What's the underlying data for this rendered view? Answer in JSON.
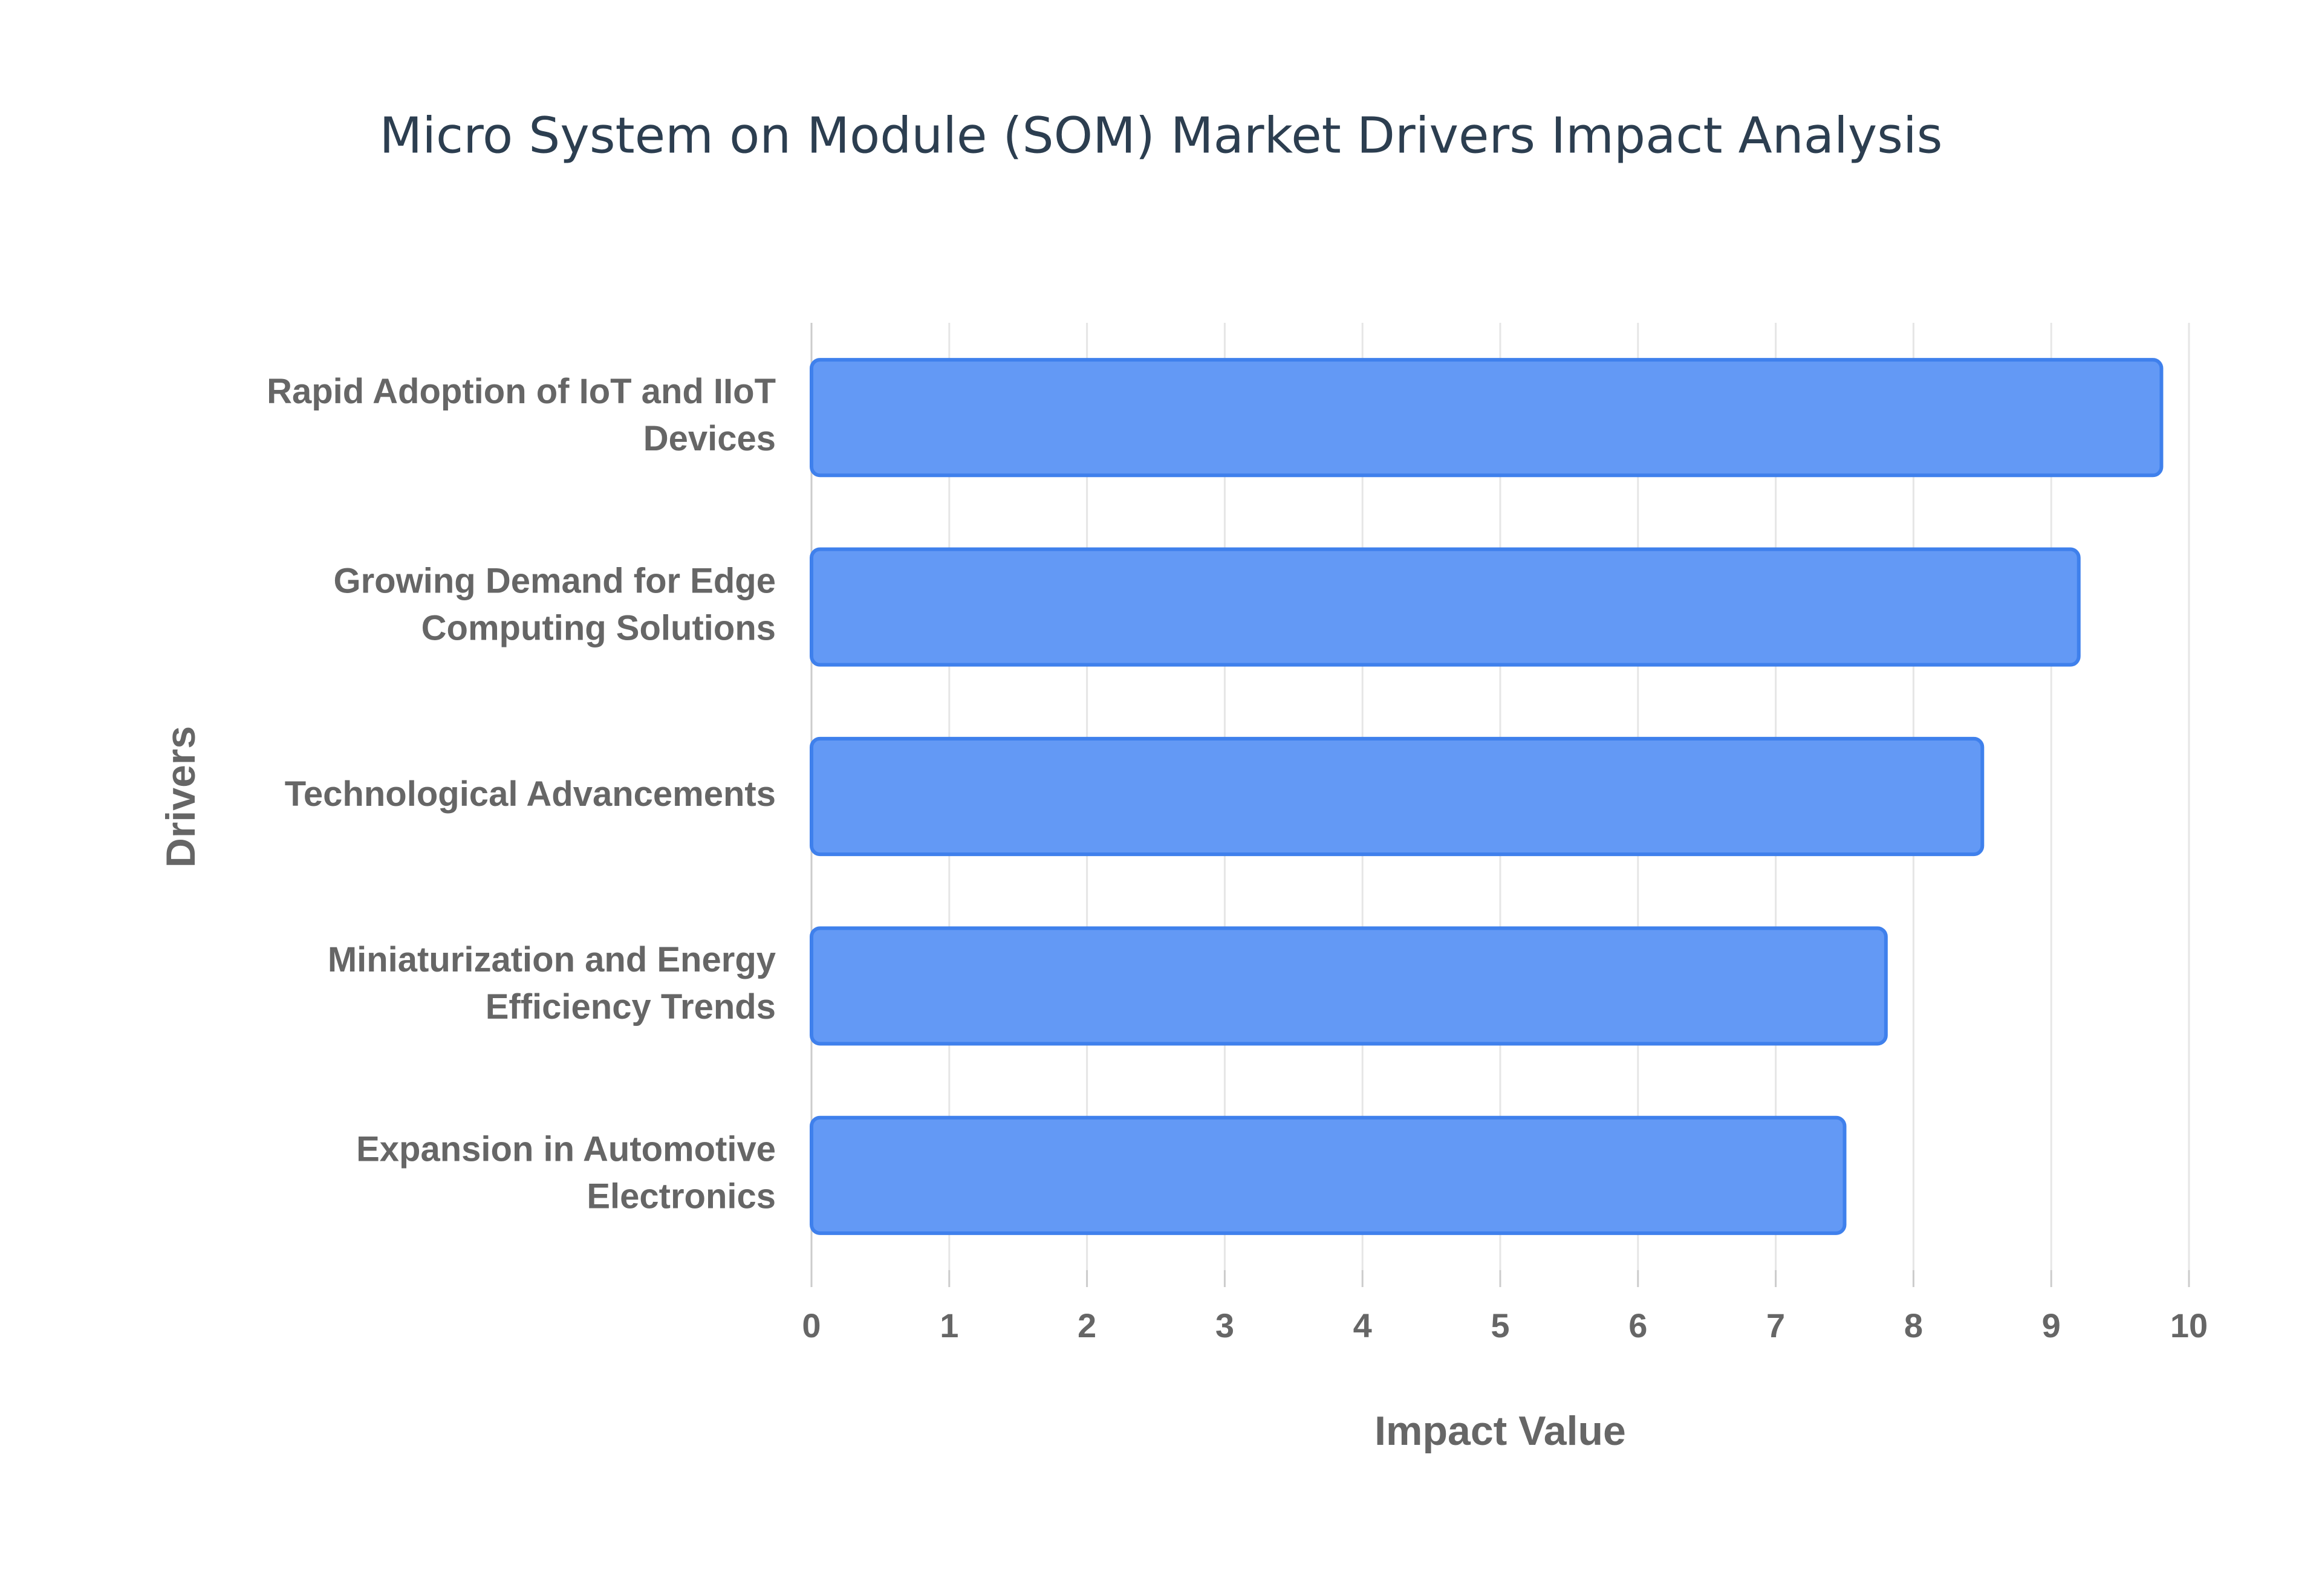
{
  "chart_data": {
    "type": "bar",
    "orientation": "horizontal",
    "title": "Micro System on Module (SOM) Market Drivers Impact Analysis",
    "x_label": "Impact Value",
    "y_label": "Drivers",
    "categories": [
      [
        "Rapid Adoption of IoT and IIoT",
        "Devices"
      ],
      [
        "Growing Demand for Edge",
        "Computing Solutions"
      ],
      [
        "Technological Advancements"
      ],
      [
        "Miniaturization and Energy",
        "Efficiency Trends"
      ],
      [
        "Expansion in Automotive",
        "Electronics"
      ]
    ],
    "values": [
      9.8,
      9.2,
      8.5,
      7.8,
      7.5
    ],
    "color": "#6399f5",
    "edge_color": "#3f80ec",
    "xlim": [
      0,
      10
    ],
    "xticks": [
      0,
      1,
      2,
      3,
      4,
      5,
      6,
      7,
      8,
      9,
      10
    ],
    "grid": true
  }
}
